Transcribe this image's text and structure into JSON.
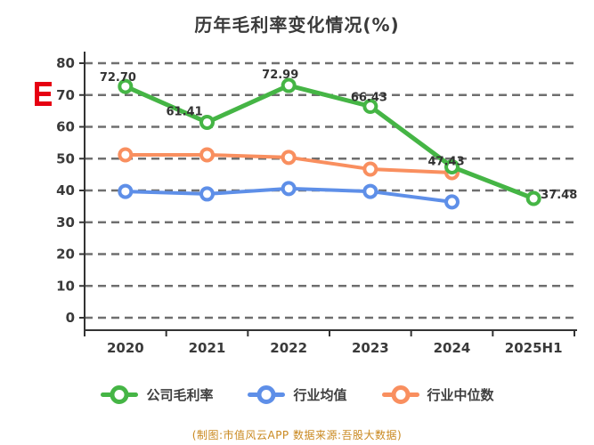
{
  "title": "历年毛利率变化情况(%)",
  "caption": "(制图:市值风云APP 数据来源:吾股大数据)",
  "colors": {
    "company": "#45b545",
    "industry_mean": "#5e8fe8",
    "industry_median": "#f98f5f",
    "grid": "#6f6f6f",
    "axis": "#333333",
    "caption": "#c9881f",
    "logo_red": "#e60012"
  },
  "legend": {
    "items": [
      {
        "label": "公司毛利率",
        "color": "#45b545"
      },
      {
        "label": "行业均值",
        "color": "#5e8fe8"
      },
      {
        "label": "行业中位数",
        "color": "#f98f5f"
      }
    ]
  },
  "chart_data": {
    "type": "line",
    "title": "历年毛利率变化情况(%)",
    "categories": [
      "2020",
      "2021",
      "2022",
      "2023",
      "2024",
      "2025H1"
    ],
    "series": [
      {
        "name": "公司毛利率",
        "color": "#45b545",
        "line_width": 5,
        "values": [
          72.7,
          61.41,
          72.99,
          66.43,
          47.43,
          37.48
        ],
        "labels": [
          "72.70",
          "61.41",
          "72.99",
          "66.43",
          "47.43",
          "37.48"
        ],
        "show_labels": true
      },
      {
        "name": "行业均值",
        "color": "#5e8fe8",
        "line_width": 4,
        "values": [
          39.7,
          38.9,
          40.6,
          39.7,
          36.4,
          null
        ],
        "show_labels": false
      },
      {
        "name": "行业中位数",
        "color": "#f98f5f",
        "line_width": 4,
        "values": [
          51.2,
          51.2,
          50.4,
          46.7,
          45.6,
          null
        ],
        "show_labels": false
      }
    ],
    "ylim": [
      0,
      80
    ],
    "y_ticks": [
      0,
      10,
      20,
      30,
      40,
      50,
      60,
      70,
      80
    ],
    "xlabel": "",
    "ylabel": "",
    "grid": "horizontal dashed",
    "legend_position": "bottom"
  }
}
